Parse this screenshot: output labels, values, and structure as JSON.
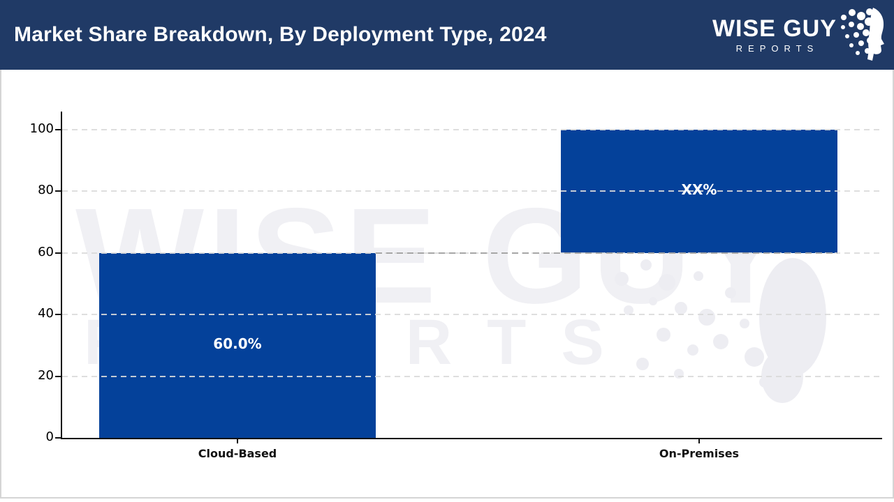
{
  "header": {
    "title": "Market Share Breakdown, By Deployment Type, 2024",
    "background_color": "#203A66",
    "text_color": "#ffffff",
    "logo": {
      "name_top": "WISE GUY",
      "name_bottom": "REPORTS"
    }
  },
  "watermark": {
    "line1": "WISE GUY",
    "line2": "REPORTS"
  },
  "chart_data": {
    "type": "bar",
    "subtype": "waterfall",
    "title": "Market Share Breakdown, By Deployment Type, 2024",
    "categories": [
      "Cloud-Based",
      "On-Premises"
    ],
    "bars": [
      {
        "category": "Cloud-Based",
        "start": 0,
        "end": 60,
        "label": "60.0%"
      },
      {
        "category": "On-Premises",
        "start": 60,
        "end": 100,
        "label": "XX%"
      }
    ],
    "values": [
      60,
      40
    ],
    "xlabel": "",
    "ylabel": "",
    "ylim": [
      0,
      100
    ],
    "yticks": [
      0,
      20,
      40,
      60,
      80,
      100
    ],
    "bar_color": "#04419A",
    "grid": true,
    "grid_style": "dashed horizontal",
    "legend": false
  }
}
